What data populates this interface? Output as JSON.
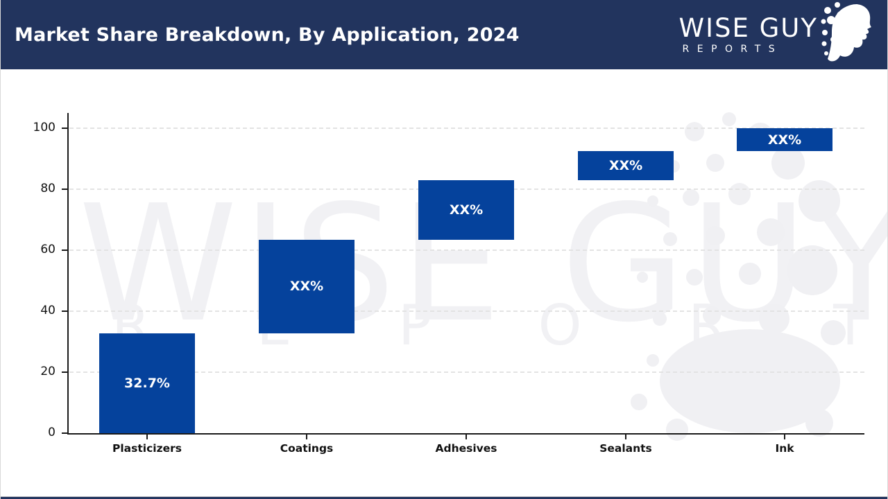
{
  "header": {
    "title": "Market Share Breakdown, By Application, 2024",
    "background_color": "#22345e",
    "logo": {
      "line1": "WISE GUY",
      "line2": "REPORTS",
      "head_icon": "dotted-face-profile"
    }
  },
  "watermark": {
    "line1": "WISE GUY",
    "line2": "R E P O R T S"
  },
  "chart_data": {
    "type": "bar",
    "subtype": "floating-waterfall",
    "title": "Market Share Breakdown, By Application, 2024",
    "categories": [
      "Plasticizers",
      "Coatings",
      "Adhesives",
      "Sealants",
      "Ink"
    ],
    "segments": [
      {
        "category": "Plasticizers",
        "start": 0,
        "end": 32.7,
        "label": "32.7%"
      },
      {
        "category": "Coatings",
        "start": 32.7,
        "end": 63.5,
        "label": "XX%"
      },
      {
        "category": "Adhesives",
        "start": 63.5,
        "end": 83,
        "label": "XX%"
      },
      {
        "category": "Sealants",
        "start": 83,
        "end": 92.5,
        "label": "XX%"
      },
      {
        "category": "Ink",
        "start": 92.5,
        "end": 100,
        "label": "XX%"
      }
    ],
    "xlabel": "",
    "ylabel": "",
    "ylim": [
      0,
      100
    ],
    "yticks": [
      0,
      20,
      40,
      60,
      80,
      100
    ],
    "grid": "horizontal-dashed",
    "legend": "none",
    "bar_color": "#05429c",
    "bar_label_color": "#ffffff",
    "axis_color": "#1a1a1a"
  }
}
